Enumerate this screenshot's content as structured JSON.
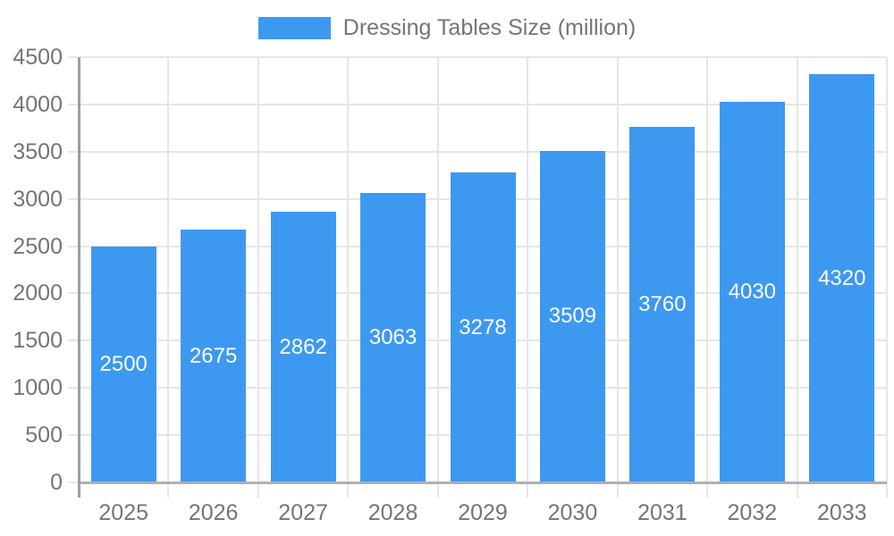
{
  "chart_data": {
    "type": "bar",
    "title": "Dressing Tables Size (million)",
    "xlabel": "",
    "ylabel": "",
    "categories": [
      "2025",
      "2026",
      "2027",
      "2028",
      "2029",
      "2030",
      "2031",
      "2032",
      "2033"
    ],
    "values": [
      2500,
      2675,
      2862,
      3063,
      3278,
      3509,
      3760,
      4030,
      4320
    ],
    "series_name": "Dressing Tables Size (million)",
    "ylim": [
      0,
      4500
    ],
    "ytick_step": 500,
    "yticks": [
      0,
      500,
      1000,
      1500,
      2000,
      2500,
      3000,
      3500,
      4000,
      4500
    ],
    "grid": true,
    "legend_position": "top",
    "bar_value_labels_shown": true
  },
  "legend": {
    "label": "Dressing Tables Size (million)"
  },
  "colors": {
    "bar": "#3D99F0",
    "grid": "#E6E6E6",
    "axis_line": "#9E9E9E",
    "baseline": "#B0B0B0",
    "text": "#757575",
    "bar_label": "#FFFFFF",
    "background": "#FFFFFF"
  }
}
